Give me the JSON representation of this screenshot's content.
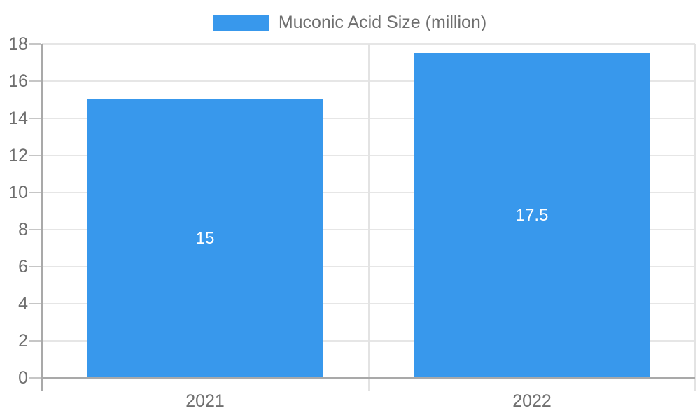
{
  "chart_data": {
    "type": "bar",
    "title": "Muconic Acid Size (million)",
    "categories": [
      "2021",
      "2022"
    ],
    "series": [
      {
        "name": "Muconic Acid Size (million)",
        "values": [
          15,
          17.5
        ]
      }
    ],
    "data_labels": [
      "15",
      "17.5"
    ],
    "xlabel": "",
    "ylabel": "",
    "ylim": [
      0,
      18
    ],
    "yticks": [
      0,
      2,
      4,
      6,
      8,
      10,
      12,
      14,
      16,
      18
    ],
    "grid": true,
    "legend_position": "top",
    "legend_items": [
      {
        "label": "Muconic Acid Size (million)",
        "color": "#3898ec"
      }
    ],
    "colors": {
      "bar": "#3898ec",
      "axis_text": "#6f6f6f",
      "bar_label_text": "#ffffff",
      "gridline": "#e6e6e6",
      "tick_mark": "#c6c6c6",
      "axis_line": "#a9a9a9",
      "boundary_line": "#e3e3e3",
      "background": "#ffffff"
    }
  }
}
